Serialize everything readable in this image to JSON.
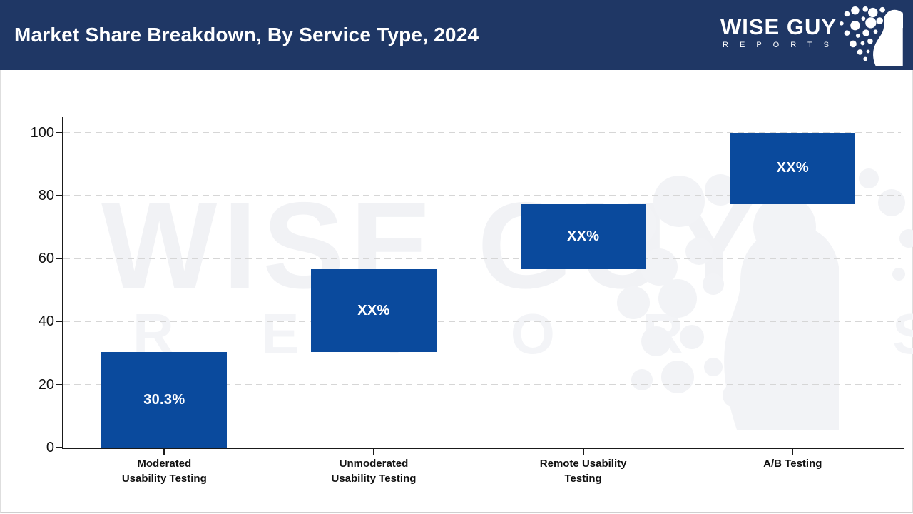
{
  "header": {
    "title": "Market Share Breakdown, By Service Type, 2024",
    "logo": {
      "name": "WISE GUY",
      "subname": "R E P O R T S"
    }
  },
  "watermark": {
    "line1": "WISE GUY",
    "line2": "R E P O R T S"
  },
  "colors": {
    "header_bg": "#1f3765",
    "bar": "#0a4a9d",
    "axis": "#1a1a1a",
    "grid": "#d6d6d6",
    "watermark": "#f1f2f5",
    "bar_label": "#ffffff"
  },
  "chart_data": {
    "type": "bar",
    "subtype": "waterfall",
    "title": "Market Share Breakdown, By Service Type, 2024",
    "categories": [
      "Moderated\nUsability Testing",
      "Unmoderated\nUsability Testing",
      "Remote Usability\nTesting",
      "A/B Testing"
    ],
    "series": [
      {
        "name": "Market Share (%)",
        "segments": [
          {
            "category": "Moderated Usability Testing",
            "start": 0,
            "end": 30.3,
            "label": "30.3%"
          },
          {
            "category": "Unmoderated Usability Testing",
            "start": 30.3,
            "end": 56.6,
            "label": "XX%"
          },
          {
            "category": "Remote Usability Testing",
            "start": 56.6,
            "end": 77.2,
            "label": "XX%"
          },
          {
            "category": "A/B Testing",
            "start": 77.2,
            "end": 100,
            "label": "XX%"
          }
        ]
      }
    ],
    "xlabel": "",
    "ylabel": "",
    "yticks": [
      0,
      20,
      40,
      60,
      80,
      100
    ],
    "ylim": [
      0,
      105
    ],
    "grid": "dashed-horizontal",
    "legend": "none"
  }
}
